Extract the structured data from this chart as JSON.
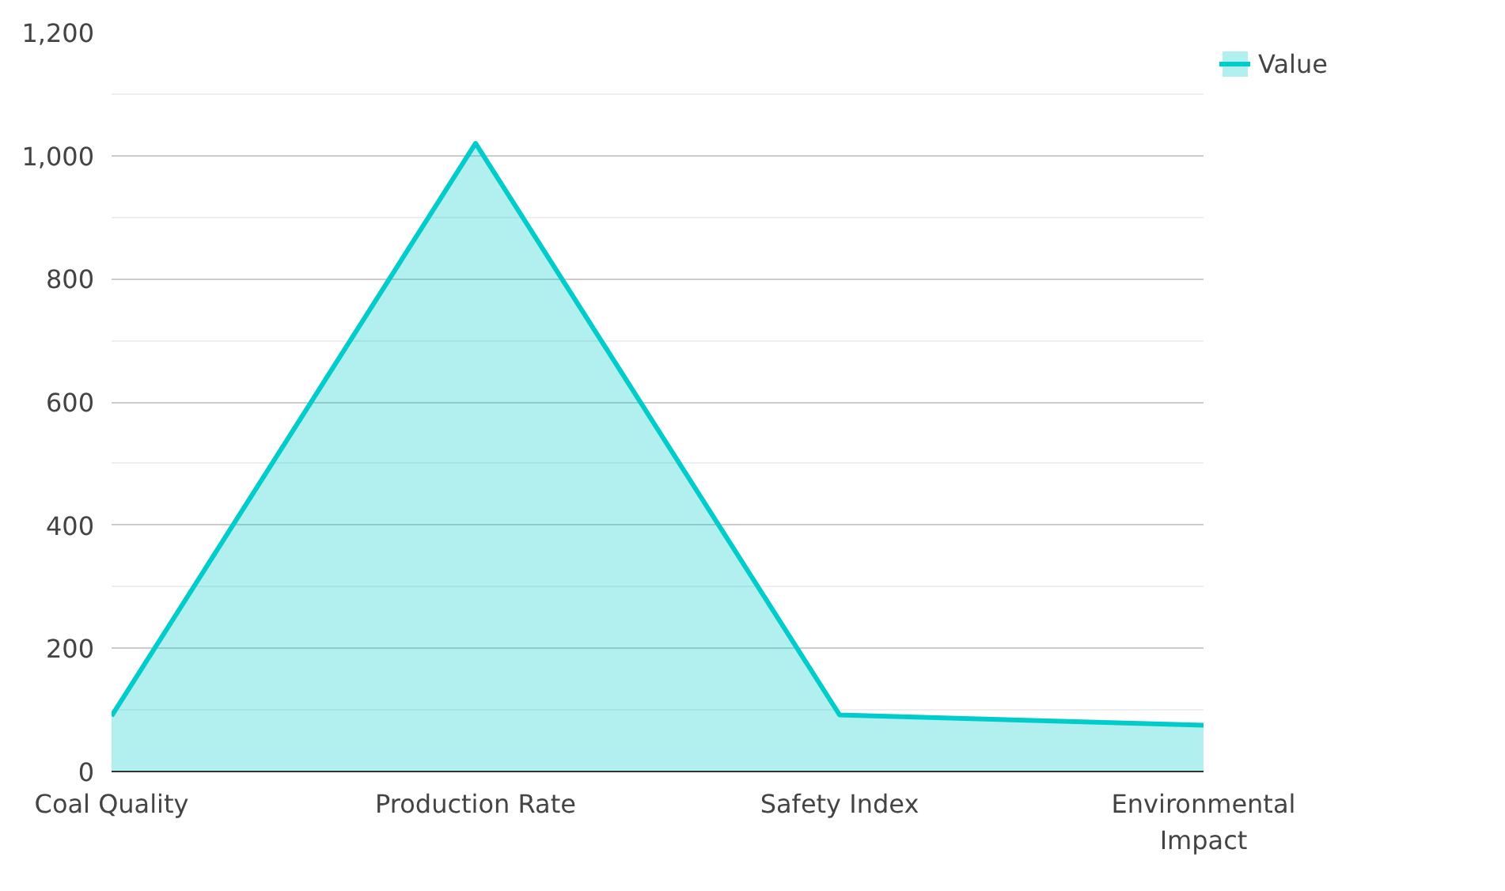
{
  "chart_data": {
    "type": "area",
    "categories": [
      "Coal Quality",
      "Production Rate",
      "Safety Index",
      "Environmental Impact"
    ],
    "series": [
      {
        "name": "Value",
        "color": "#00cccc",
        "values": [
          90,
          1020,
          92,
          75
        ]
      }
    ],
    "ylim": [
      0,
      1200
    ],
    "yticks": [
      0,
      {
        "value": 200,
        "label": "200"
      },
      {
        "value": 400,
        "label": "400"
      },
      {
        "value": 600,
        "label": "600"
      },
      {
        "value": 800,
        "label": "800"
      },
      {
        "value": 1000,
        "label": "1,000"
      },
      {
        "value": 1200,
        "label": "1,200"
      }
    ],
    "grid": "y",
    "legend": "top right"
  }
}
